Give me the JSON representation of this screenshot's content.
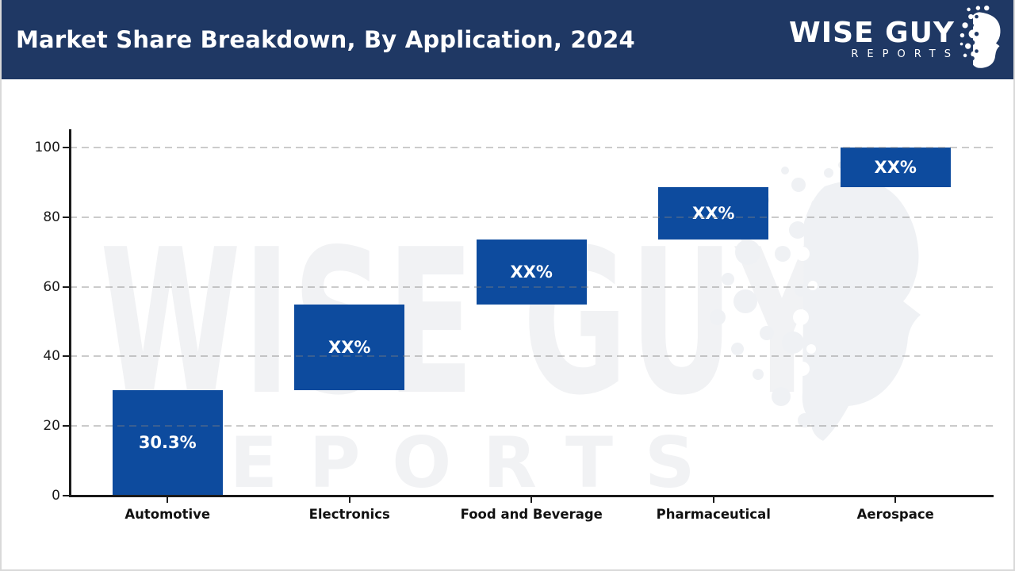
{
  "header": {
    "title": "Market Share Breakdown, By Application, 2024",
    "logo": {
      "name": "WISE GUY",
      "subname": "REPORTS"
    }
  },
  "watermark": {
    "text": "WISE GUY",
    "subtext": "REPORTS"
  },
  "chart_data": {
    "type": "bar",
    "variant": "waterfall",
    "title": "Market Share Breakdown, By Application, 2024",
    "categories": [
      "Automotive",
      "Electronics",
      "Food and Beverage",
      "Pharmaceutical",
      "Aerospace"
    ],
    "segments": [
      {
        "category": "Automotive",
        "start": 0,
        "end": 30.3,
        "label": "30.3%"
      },
      {
        "category": "Electronics",
        "start": 30.3,
        "end": 54.8,
        "label": "XX%"
      },
      {
        "category": "Food and Beverage",
        "start": 54.8,
        "end": 73.5,
        "label": "XX%"
      },
      {
        "category": "Pharmaceutical",
        "start": 73.5,
        "end": 88.5,
        "label": "XX%"
      },
      {
        "category": "Aerospace",
        "start": 88.5,
        "end": 100,
        "label": "XX%"
      }
    ],
    "yticks": [
      0,
      20,
      40,
      60,
      80,
      100
    ],
    "ylim": [
      0,
      105
    ],
    "xlabel": "",
    "ylabel": "",
    "grid": true,
    "legend": false,
    "colors": {
      "bar": "#0d4b9e",
      "bar_label": "#ffffff",
      "header_bg": "#1f3864",
      "axis": "#1a1a1a",
      "watermark": "#f1f2f4"
    }
  }
}
